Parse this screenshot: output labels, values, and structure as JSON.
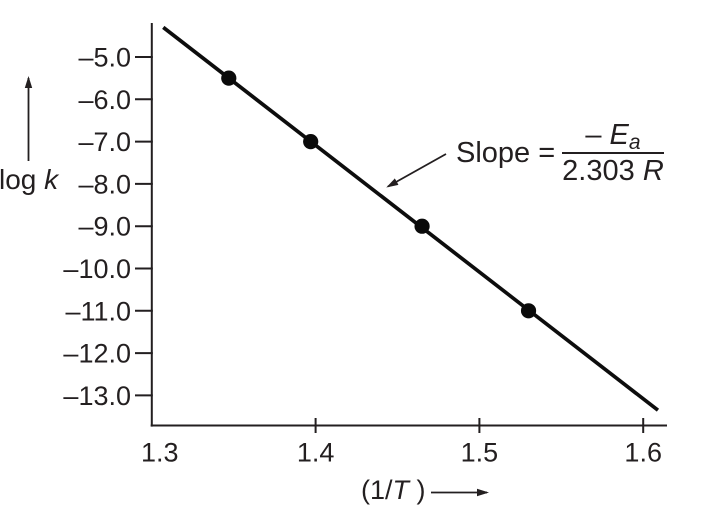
{
  "figure": {
    "background_color": "#ffffff",
    "ink_color": "#231f20",
    "point_color": "#0a0a0a"
  },
  "chart_data": {
    "type": "scatter",
    "title": "",
    "xlabel": "(1/T)",
    "ylabel": "log k",
    "x": [
      1.347,
      1.397,
      1.465,
      1.53
    ],
    "y": [
      -5.5,
      -7.0,
      -9.0,
      -11.0
    ],
    "trend_line": {
      "x": [
        1.307,
        1.609
      ],
      "y": [
        -4.3,
        -13.35
      ]
    },
    "slope_estimate": -30,
    "xticks": [
      1.3,
      1.4,
      1.5,
      1.6
    ],
    "xtick_labels": [
      "1.3",
      "1.4",
      "1.5",
      "1.6"
    ],
    "xticks_with_marks": [
      1.4,
      1.5,
      1.6
    ],
    "yticks": [
      -5,
      -6,
      -7,
      -8,
      -9,
      -10,
      -11,
      -12,
      -13
    ],
    "ytick_labels": [
      "–5.0",
      "–6.0",
      "–7.0",
      "–8.0",
      "–9.0",
      "–10.0",
      "–11.0",
      "–12.0",
      "–13.0"
    ],
    "xlim": [
      1.3,
      1.615
    ],
    "ylim": [
      -13.72,
      -4.23
    ],
    "grid": false,
    "legend": null,
    "annotations": [
      "Slope = –Ea / 2.303 R"
    ]
  },
  "labels": {
    "slope_prefix": "Slope =",
    "slope_numerator_sign": "– ",
    "slope_numerator_symbol": "E",
    "slope_numerator_subscript": "a",
    "slope_denominator_number": "2.303 ",
    "slope_denominator_symbol": "R",
    "ylabel_prefix": "log ",
    "ylabel_symbol": "k",
    "xlabel_open": "(1/",
    "xlabel_symbol": "T",
    "xlabel_close": " )"
  }
}
